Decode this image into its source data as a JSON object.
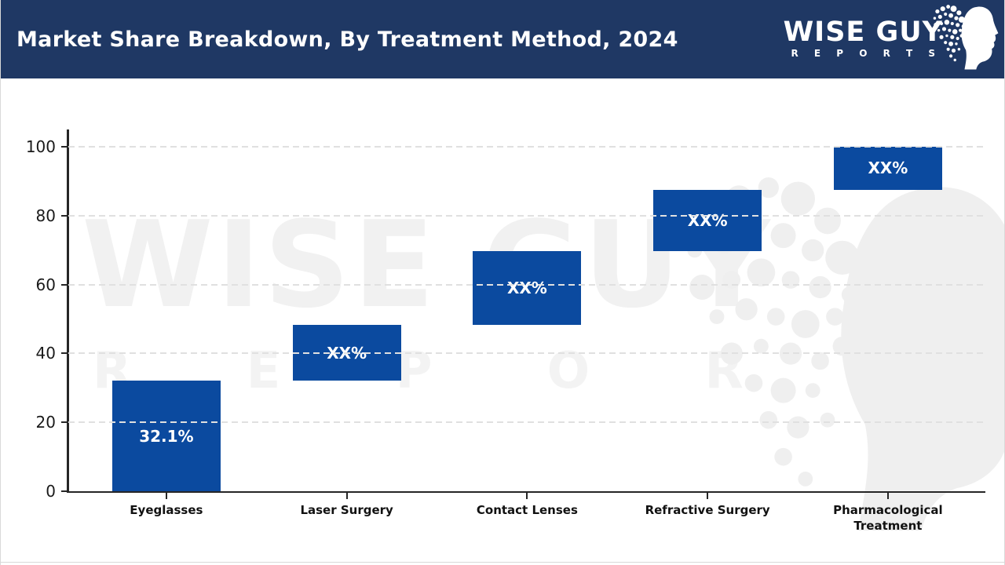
{
  "header": {
    "title": "Market Share Breakdown, By Treatment Method, 2024",
    "background_color": "#1f3864",
    "logo": {
      "line1": "WISE GUY",
      "line2": "R E P O R T S",
      "face_icon": "dotted-face-profile"
    }
  },
  "watermark": {
    "line1": "WISE GUY",
    "line2": "R E P O R T S",
    "face_icon": "dotted-face-profile"
  },
  "chart_data": {
    "type": "bar",
    "subtype": "waterfall",
    "title": "Market Share Breakdown, By Treatment Method, 2024",
    "xlabel": "",
    "ylabel": "",
    "ylim": [
      0,
      104
    ],
    "yticks": [
      0,
      20,
      40,
      60,
      80,
      100
    ],
    "grid": "horizontal-dashed",
    "legend": "none",
    "bar_color": "#0b4a9f",
    "label_color": "#ffffff",
    "categories": [
      "Eyeglasses",
      "Laser Surgery",
      "Contact Lenses",
      "Refractive Surgery",
      "Pharmacological Treatment"
    ],
    "segments": [
      {
        "category": "Eyeglasses",
        "start": 0,
        "end": 32.1,
        "label": "32.1%"
      },
      {
        "category": "Laser Surgery",
        "start": 32.1,
        "end": 48.3,
        "label": "XX%"
      },
      {
        "category": "Contact Lenses",
        "start": 48.3,
        "end": 69.8,
        "label": "XX%"
      },
      {
        "category": "Refractive Surgery",
        "start": 69.8,
        "end": 87.5,
        "label": "XX%"
      },
      {
        "category": "Pharmacological Treatment",
        "start": 87.5,
        "end": 100,
        "label": "XX%"
      }
    ]
  }
}
